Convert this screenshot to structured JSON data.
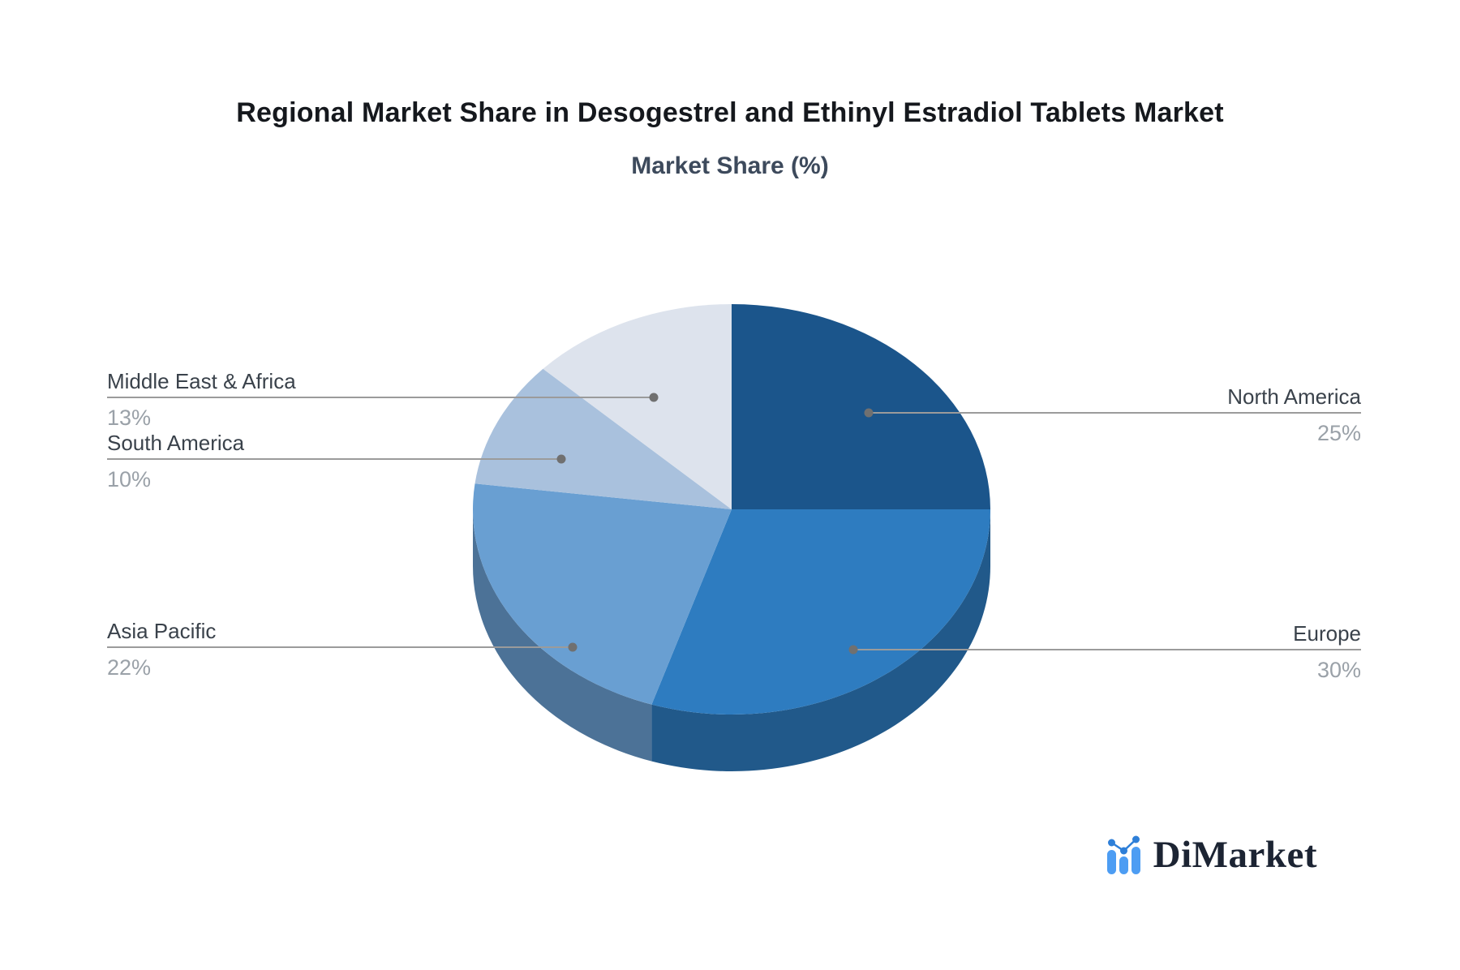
{
  "header": {
    "title": "Regional Market Share in Desogestrel and Ethinyl Estradiol Tablets Market",
    "subtitle": "Market Share (%)"
  },
  "chart_data": {
    "type": "pie",
    "title": "Regional Market Share in Desogestrel and Ethinyl Estradiol Tablets Market",
    "subtitle": "Market Share (%)",
    "unit": "%",
    "start_angle_deg": 0,
    "direction": "clockwise",
    "effect": "3d-depth",
    "legend_position": "callout-labels",
    "slices": [
      {
        "label": "North America",
        "value": 25,
        "pct_label": "25%",
        "color": "#1B558B",
        "label_side": "right"
      },
      {
        "label": "Europe",
        "value": 30,
        "pct_label": "30%",
        "color": "#2E7CC0",
        "label_side": "right"
      },
      {
        "label": "Asia Pacific",
        "value": 22,
        "pct_label": "22%",
        "color": "#699FD2",
        "label_side": "left"
      },
      {
        "label": "South America",
        "value": 10,
        "pct_label": "10%",
        "color": "#A9C1DD",
        "label_side": "left"
      },
      {
        "label": "Middle East & Africa",
        "value": 13,
        "pct_label": "13%",
        "color": "#DDE3ED",
        "label_side": "left"
      }
    ],
    "label_name_color": "#3A424B",
    "label_pct_color": "#9AA1A8",
    "leader_line_color": "#9B9B9B",
    "leader_dot_color": "#707070"
  },
  "brand": {
    "name": "DiMarket",
    "icon": "dimarket-logo-icon",
    "text_color": "#1C2433",
    "bar_color": "#4D9DF3",
    "dot_color": "#2E7FD8"
  }
}
